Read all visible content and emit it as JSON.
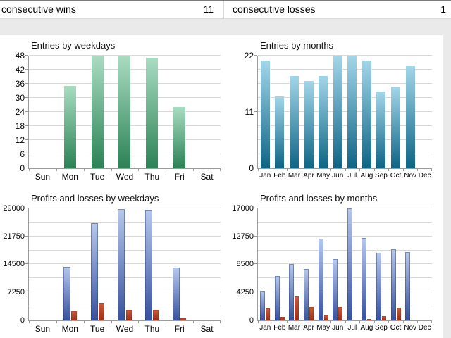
{
  "header": {
    "wins": {
      "label": "consecutive wins",
      "value": "11"
    },
    "losses": {
      "label": "consecutive losses",
      "value": "1"
    }
  },
  "colors": {
    "window_bg": "#eaeaea",
    "panel_bg": "#ffffff",
    "grid": "#d8d8d8",
    "axis": "#9b9b9b",
    "header_divider": "#d9d9d9"
  },
  "palettes": {
    "green": {
      "top": "#a9dcc2",
      "bottom": "#2b8254"
    },
    "teal": {
      "top": "#a3d6e9",
      "bottom": "#0d6484"
    },
    "blue": {
      "top": "#b7c8ec",
      "bottom": "#36519e"
    },
    "red": {
      "top": "#cb5b3b",
      "bottom": "#9d2d16"
    }
  },
  "chart_data": [
    {
      "type": "bar",
      "title": "Entries by weekdays",
      "categories": [
        "Sun",
        "Mon",
        "Tue",
        "Wed",
        "Thu",
        "Fri",
        "Sat"
      ],
      "values": [
        0,
        35,
        48,
        48,
        47,
        26,
        0
      ],
      "palette": "green",
      "ylim": [
        0,
        48
      ],
      "ytick_labels": [
        0,
        6,
        12,
        18,
        24,
        30,
        36,
        42,
        48
      ],
      "grid_divisions": 8,
      "legend": "none",
      "xlabel": "",
      "ylabel": ""
    },
    {
      "type": "bar",
      "title": "Entries by months",
      "categories": [
        "Jan",
        "Feb",
        "Mar",
        "Apr",
        "May",
        "Jun",
        "Jul",
        "Aug",
        "Sep",
        "Oct",
        "Nov",
        "Dec"
      ],
      "values": [
        21,
        14,
        18,
        17,
        18,
        22,
        22,
        21,
        15,
        16,
        20,
        0
      ],
      "palette": "teal",
      "ylim": [
        0,
        22
      ],
      "ytick_labels": [
        0,
        11,
        22
      ],
      "grid_divisions": 8,
      "legend": "none",
      "xlabel": "",
      "ylabel": ""
    },
    {
      "type": "bar",
      "title": "Profits and losses by weekdays",
      "categories": [
        "Sun",
        "Mon",
        "Tue",
        "Wed",
        "Thu",
        "Fri",
        "Sat"
      ],
      "series": [
        {
          "name": "profit",
          "palette": "blue",
          "values": [
            0,
            13900,
            25100,
            28900,
            28700,
            13600,
            0
          ]
        },
        {
          "name": "loss",
          "palette": "red",
          "values": [
            0,
            2300,
            4400,
            2700,
            2750,
            500,
            0
          ]
        }
      ],
      "ylim": [
        0,
        29000
      ],
      "ytick_labels": [
        0,
        7250,
        14500,
        21750,
        29000
      ],
      "grid_divisions": 8,
      "legend": "none",
      "xlabel": "",
      "ylabel": ""
    },
    {
      "type": "bar",
      "title": "Profits and losses by months",
      "categories": [
        "Jan",
        "Feb",
        "Mar",
        "Apr",
        "May",
        "Jun",
        "Jul",
        "Aug",
        "Sep",
        "Oct",
        "Nov",
        "Dec"
      ],
      "series": [
        {
          "name": "profit",
          "palette": "blue",
          "values": [
            4500,
            6700,
            8500,
            7800,
            12400,
            9300,
            17000,
            12500,
            10300,
            10800,
            10400,
            0
          ]
        },
        {
          "name": "loss",
          "palette": "red",
          "values": [
            1850,
            550,
            3650,
            2000,
            750,
            2050,
            0,
            250,
            600,
            1900,
            0,
            0
          ]
        }
      ],
      "ylim": [
        0,
        17000
      ],
      "ytick_labels": [
        0,
        4250,
        8500,
        12750,
        17000
      ],
      "grid_divisions": 8,
      "legend": "none",
      "xlabel": "",
      "ylabel": ""
    }
  ]
}
